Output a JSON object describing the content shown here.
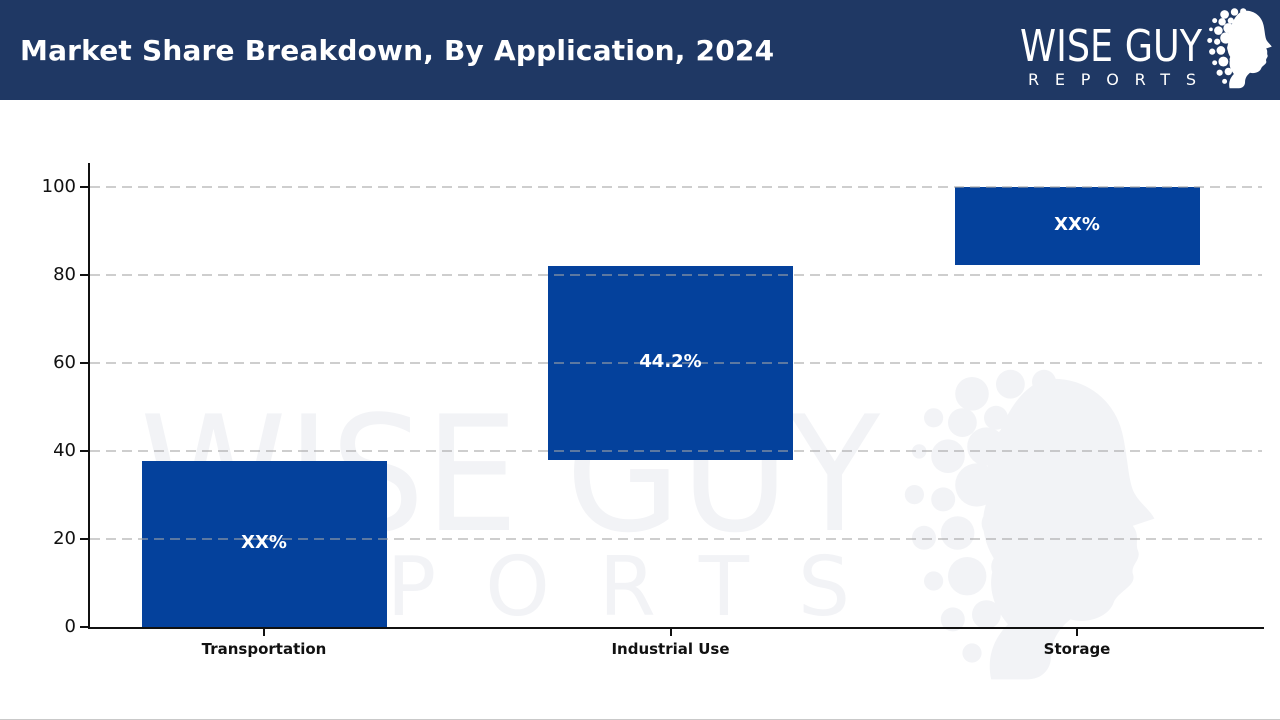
{
  "header": {
    "title": "Market Share Breakdown, By Application, 2024",
    "logo": {
      "name": "WISE GUY",
      "sub": "REPORTS"
    }
  },
  "watermark": {
    "line1": "WISE GUY",
    "line2": "REPORTS"
  },
  "chart_data": {
    "type": "bar",
    "subtype": "floating-waterfall",
    "title": "Market Share Breakdown, By Application, 2024",
    "categories": [
      "Transportation",
      "Industrial Use",
      "Storage"
    ],
    "series": [
      {
        "name": "Market share (%)",
        "segments": [
          {
            "category": "Transportation",
            "start": 0,
            "end": 37.7,
            "label": "XX%"
          },
          {
            "category": "Industrial Use",
            "start": 37.9,
            "end": 82.1,
            "label": "44.2%"
          },
          {
            "category": "Storage",
            "start": 82.3,
            "end": 100,
            "label": "XX%"
          }
        ]
      }
    ],
    "xlabel": "",
    "ylabel": "",
    "ylim": [
      0,
      105.5
    ],
    "yticks": [
      0,
      20,
      40,
      60,
      80,
      100
    ],
    "grid": "horizontal-dashed",
    "legend": "none",
    "bar_color": "#04419c",
    "bar_label_color": "#ffffff",
    "header_color": "#1f3864",
    "axis_color": "#111111",
    "gridline_color": "#d2d2d2",
    "watermark_color": "#f2f3f6"
  }
}
